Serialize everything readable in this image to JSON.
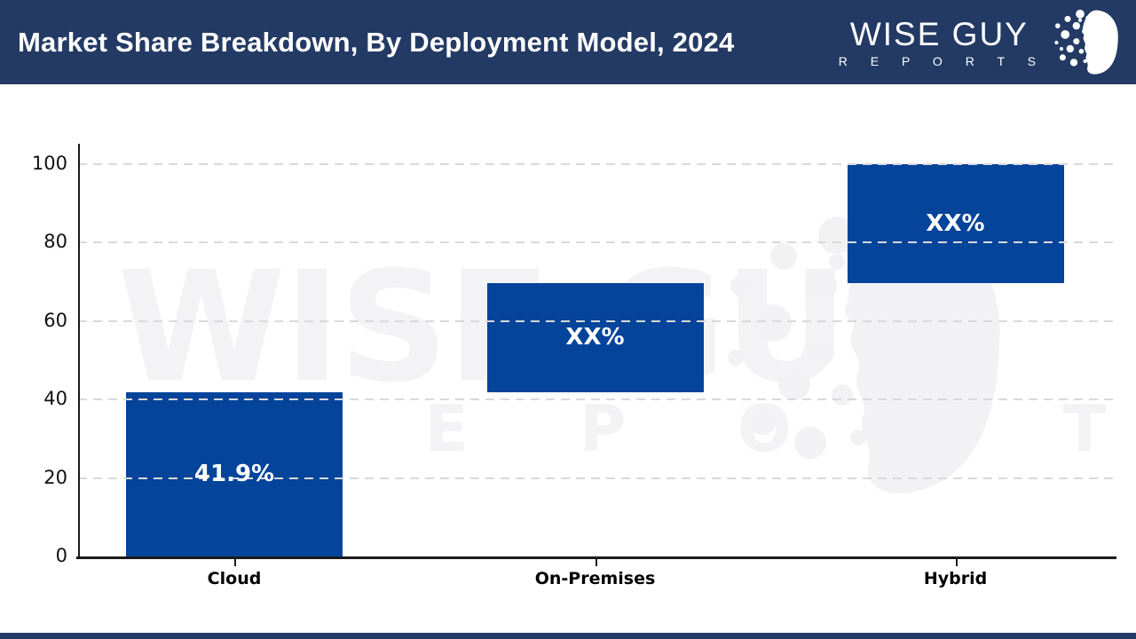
{
  "header": {
    "title": "Market Share Breakdown, By Deployment Model, 2024",
    "logo": {
      "line1": "WISE GUY",
      "line2": "R E P O R T S"
    }
  },
  "watermark": {
    "line1": "WISE GUY",
    "line2": "R E P O R T S"
  },
  "footer": {},
  "chart_data": {
    "type": "bar",
    "subtype": "floating-segment-waterfall",
    "title": "Market Share Breakdown, By Deployment Model, 2024",
    "categories": [
      "Cloud",
      "On-Premises",
      "Hybrid"
    ],
    "segments": [
      {
        "category": "Cloud",
        "start": 0,
        "end": 41.9,
        "label": "41.9%"
      },
      {
        "category": "On-Premises",
        "start": 41.9,
        "end": 69.7,
        "label": "XX%"
      },
      {
        "category": "Hybrid",
        "start": 69.7,
        "end": 100,
        "label": "XX%"
      }
    ],
    "xlabel": "",
    "ylabel": "",
    "yticks": [
      "0",
      "20",
      "40",
      "60",
      "80",
      "100"
    ],
    "ylim": [
      0,
      100
    ],
    "grid": "dashed-horizontal",
    "legend": "none",
    "bar_color": "#04449a",
    "bar_label_color": "#ffffff",
    "axis_color": "#1a1a1a",
    "gridline_color": "#d9d9d9",
    "header_color": "#233a64",
    "watermark_color": "#f3f3f5"
  }
}
